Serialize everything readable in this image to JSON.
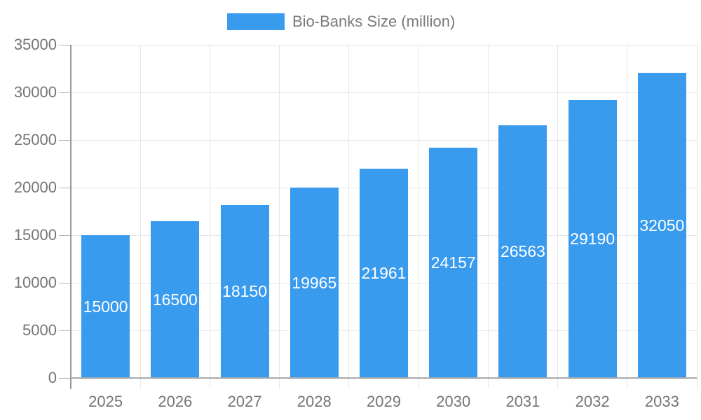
{
  "legend": {
    "label": "Bio-Banks Size (million)"
  },
  "chart_data": {
    "type": "bar",
    "title": "",
    "xlabel": "",
    "ylabel": "",
    "series_name": "Bio-Banks Size (million)",
    "categories": [
      "2025",
      "2026",
      "2027",
      "2028",
      "2029",
      "2030",
      "2031",
      "2032",
      "2033"
    ],
    "values": [
      15000,
      16500,
      18150,
      19965,
      21961,
      24157,
      26563,
      29190,
      32050
    ],
    "bar_labels": [
      "15000",
      "16500",
      "18150",
      "19965",
      "21961",
      "24157",
      "26563",
      "29190",
      "32050"
    ],
    "ylim": [
      0,
      35000
    ],
    "yticks": [
      0,
      5000,
      10000,
      15000,
      20000,
      25000,
      30000,
      35000
    ],
    "grid": true,
    "legend_position": "top",
    "colors": {
      "bar": "#389BEE",
      "grid": "#E6E6E6",
      "y_axis": "#999999",
      "baseline": "#AAAAAA",
      "tick": "#B3B3B3",
      "axis_text": "#757575",
      "legend_text": "#7A7A7A",
      "bar_label": "#FFFFFF",
      "background": "#FFFFFF"
    }
  }
}
